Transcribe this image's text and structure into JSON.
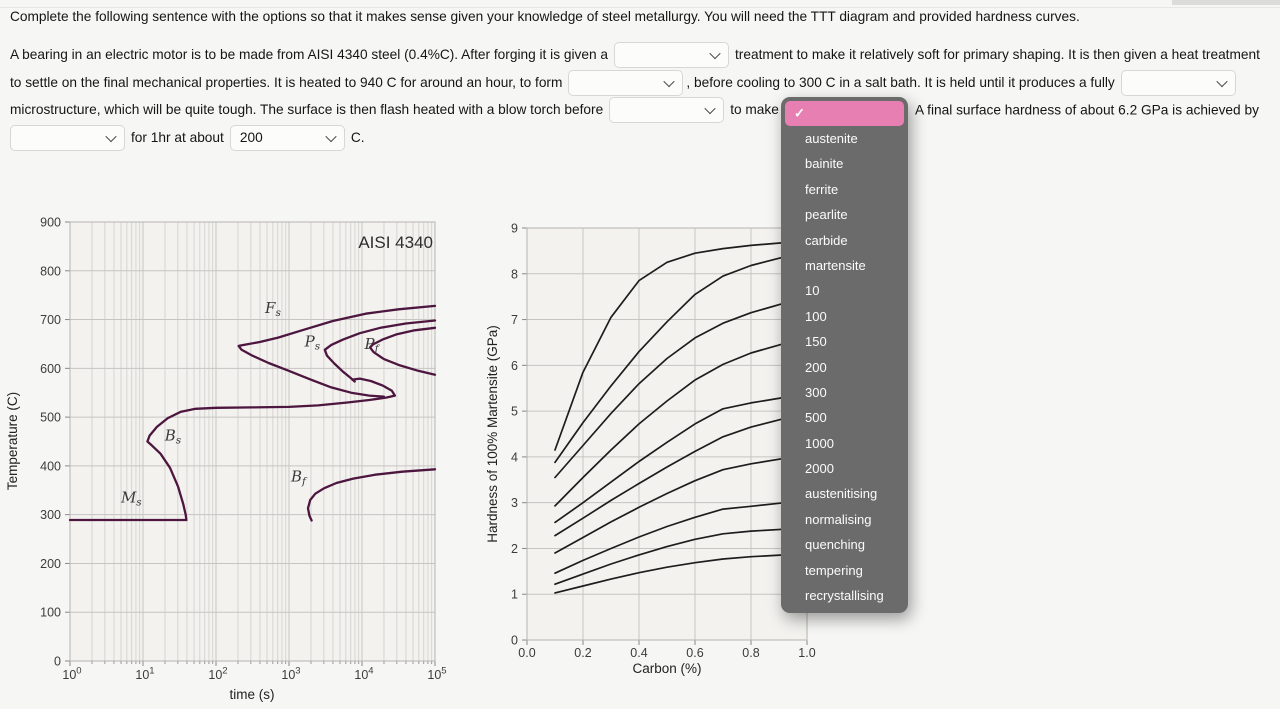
{
  "instruction": "Complete the following sentence with the options so that it makes sense given your knowledge of steel metallurgy. You will need the TTT diagram and provided hardness curves.",
  "sentence": {
    "line2_before": "A bearing in an electric motor is to be made from AISI 4340 steel (0.4%C). After forging it is given a",
    "line2_after": "treatment to make it relatively soft for primary shaping. It is then given a heat treatment",
    "line3_before": "to settle on the final mechanical properties. It is heated to 940 C for around an hour, to form",
    "line3_after": ", before cooling to 300 C in a salt bath. It is held until it produces a fully",
    "line4_before": "microstructure, which will be quite tough. The surface is then flash heated with a blow torch before",
    "line4_mid": "to make",
    "line4_after": "A final surface hardness of about 6.2 GPa is achieved by",
    "line5_mid": "for 1hr at about",
    "line5_end": "C.",
    "temp_value": "200"
  },
  "dropdown": {
    "selected_checkmark": "✓",
    "options": [
      "austenite",
      "bainite",
      "ferrite",
      "pearlite",
      "carbide",
      "martensite",
      "10",
      "100",
      "150",
      "200",
      "300",
      "500",
      "1000",
      "2000",
      "austenitising",
      "normalising",
      "quenching",
      "tempering",
      "recrystallising"
    ]
  },
  "colors": {
    "ttt_curve": "#4d163f",
    "hardness_curve": "#1d1d1d",
    "menu_bg": "#6b6b6b",
    "highlight_pink": "#e87fb2",
    "grid_minor": "#d6d5d2",
    "grid_major": "#c6c5c2",
    "plot_bg": "#f3f2ef"
  },
  "chart_data": [
    {
      "type": "line",
      "id": "ttt",
      "title": "AISI 4340",
      "xlabel": "time (s)",
      "ylabel": "Temperature (C)",
      "x_scale": "log",
      "xlim_log": [
        0,
        5
      ],
      "ylim": [
        0,
        900
      ],
      "y_tick_step": 100,
      "grid": true,
      "series": [
        {
          "name": "Ms-line",
          "points": [
            [
              0,
              289
            ],
            [
              1.595,
              289
            ]
          ]
        },
        {
          "name": "Bs-curve",
          "points": [
            [
              1.595,
              289
            ],
            [
              1.585,
              300
            ],
            [
              1.55,
              322
            ],
            [
              1.48,
              358
            ],
            [
              1.37,
              396
            ],
            [
              1.24,
              425
            ],
            [
              1.12,
              442
            ],
            [
              1.06,
              450
            ],
            [
              1.09,
              462
            ],
            [
              1.19,
              480
            ],
            [
              1.34,
              498
            ],
            [
              1.52,
              511
            ],
            [
              1.72,
              517
            ],
            [
              2.0,
              519
            ],
            [
              2.5,
              520
            ],
            [
              3.0,
              521
            ],
            [
              3.4,
              524
            ],
            [
              3.8,
              530
            ],
            [
              4.1,
              535
            ],
            [
              4.33,
              540
            ],
            [
              4.45,
              544
            ],
            [
              4.41,
              554
            ],
            [
              4.28,
              565
            ],
            [
              4.12,
              574
            ],
            [
              3.97,
              579
            ],
            [
              3.87,
              577
            ]
          ]
        },
        {
          "name": "Fs-curve",
          "points": [
            [
              5.0,
              728
            ],
            [
              4.5,
              721
            ],
            [
              4.05,
              712
            ],
            [
              3.6,
              697
            ],
            [
              3.2,
              679
            ],
            [
              2.85,
              663
            ],
            [
              2.6,
              654
            ],
            [
              2.42,
              649
            ],
            [
              2.31,
              646
            ],
            [
              2.35,
              638
            ],
            [
              2.5,
              626
            ],
            [
              2.72,
              611
            ],
            [
              2.98,
              596
            ],
            [
              3.28,
              578
            ],
            [
              3.58,
              561
            ],
            [
              3.85,
              550
            ],
            [
              4.1,
              544
            ],
            [
              4.3,
              542
            ]
          ]
        },
        {
          "name": "Ps-curve",
          "points": [
            [
              5.0,
              698
            ],
            [
              4.6,
              692
            ],
            [
              4.25,
              683
            ],
            [
              3.97,
              672
            ],
            [
              3.74,
              659
            ],
            [
              3.58,
              648
            ],
            [
              3.49,
              638
            ],
            [
              3.52,
              626
            ],
            [
              3.62,
              610
            ],
            [
              3.74,
              593
            ],
            [
              3.84,
              581
            ],
            [
              3.9,
              573
            ]
          ]
        },
        {
          "name": "Pf-curve",
          "points": [
            [
              5.0,
              683
            ],
            [
              4.72,
              678
            ],
            [
              4.48,
              670
            ],
            [
              4.28,
              659
            ],
            [
              4.15,
              649
            ],
            [
              4.11,
              643
            ],
            [
              4.16,
              633
            ],
            [
              4.3,
              619
            ],
            [
              4.52,
              606
            ],
            [
              4.77,
              595
            ],
            [
              5.0,
              587
            ]
          ]
        },
        {
          "name": "Bf-curve",
          "points": [
            [
              3.31,
              288
            ],
            [
              3.28,
              298
            ],
            [
              3.26,
              313
            ],
            [
              3.29,
              330
            ],
            [
              3.36,
              343
            ],
            [
              3.48,
              354
            ],
            [
              3.65,
              365
            ],
            [
              3.88,
              374
            ],
            [
              4.18,
              382
            ],
            [
              4.55,
              388
            ],
            [
              5.0,
              393
            ]
          ]
        }
      ],
      "labels": [
        {
          "main": "F",
          "sub": "s",
          "x": 2.78,
          "y": 713
        },
        {
          "main": "P",
          "sub": "s",
          "x": 3.32,
          "y": 645
        },
        {
          "main": "P",
          "sub": "f",
          "x": 4.13,
          "y": 640
        },
        {
          "main": "B",
          "sub": "s",
          "x": 1.41,
          "y": 452
        },
        {
          "main": "B",
          "sub": "f",
          "x": 3.13,
          "y": 368
        },
        {
          "main": "M",
          "sub": "s",
          "x": 0.84,
          "y": 325
        }
      ]
    },
    {
      "type": "line",
      "id": "hardness",
      "title": "",
      "xlabel": "Carbon (%)",
      "ylabel": "Hardness of 100% Martensite (GPa)",
      "xlim": [
        0,
        1
      ],
      "ylim": [
        0,
        9
      ],
      "x_ticks": [
        0.0,
        0.2,
        0.4,
        0.6,
        0.8,
        1.0
      ],
      "grid": true,
      "x": [
        0.1,
        0.2,
        0.3,
        0.4,
        0.5,
        0.6,
        0.7,
        0.8,
        0.92
      ],
      "series": [
        {
          "name": "curve-1",
          "values": [
            4.15,
            5.85,
            7.05,
            7.85,
            8.25,
            8.45,
            8.55,
            8.62,
            8.68
          ]
        },
        {
          "name": "curve-2",
          "values": [
            3.88,
            4.75,
            5.55,
            6.3,
            6.95,
            7.55,
            7.95,
            8.18,
            8.37
          ]
        },
        {
          "name": "curve-3",
          "values": [
            3.55,
            4.25,
            4.95,
            5.6,
            6.15,
            6.6,
            6.92,
            7.15,
            7.36
          ]
        },
        {
          "name": "curve-4",
          "values": [
            2.93,
            3.55,
            4.15,
            4.72,
            5.22,
            5.68,
            6.02,
            6.27,
            6.48
          ]
        },
        {
          "name": "curve-5",
          "values": [
            2.57,
            3.0,
            3.45,
            3.9,
            4.32,
            4.72,
            5.05,
            5.18,
            5.3
          ]
        },
        {
          "name": "curve-6",
          "values": [
            2.28,
            2.66,
            3.05,
            3.42,
            3.78,
            4.12,
            4.44,
            4.65,
            4.84
          ]
        },
        {
          "name": "curve-7",
          "values": [
            1.9,
            2.24,
            2.58,
            2.9,
            3.2,
            3.48,
            3.72,
            3.85,
            3.97
          ]
        },
        {
          "name": "curve-8",
          "values": [
            1.46,
            1.74,
            2.0,
            2.25,
            2.48,
            2.68,
            2.86,
            2.92,
            3.0
          ]
        },
        {
          "name": "curve-9",
          "values": [
            1.22,
            1.44,
            1.66,
            1.86,
            2.04,
            2.2,
            2.32,
            2.38,
            2.42
          ]
        },
        {
          "name": "curve-10",
          "values": [
            1.03,
            1.18,
            1.33,
            1.47,
            1.59,
            1.69,
            1.77,
            1.82,
            1.86
          ]
        }
      ]
    }
  ]
}
